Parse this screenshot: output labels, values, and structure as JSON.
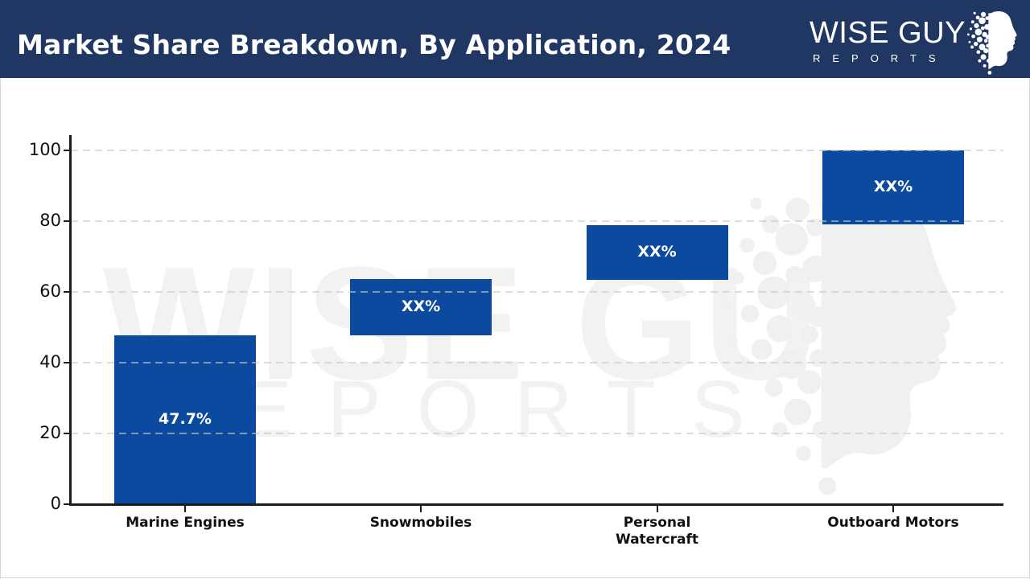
{
  "colors": {
    "header_bg": "#203763",
    "bar": "#0b4a9e",
    "watermark": "#f2f2f2",
    "grid": "#c8c8c8",
    "axis": "#1c1c1c",
    "bar_label": "#ffffff"
  },
  "header": {
    "title": "Market Share Breakdown, By Application, 2024",
    "brand": {
      "name": "WISE GUY",
      "sub": "REPORTS"
    }
  },
  "watermark": {
    "line1": "WISE GUY",
    "line2": "REPORTS"
  },
  "chart_data": {
    "type": "bar",
    "subtype": "waterfall",
    "title": "Market Share Breakdown, By Application, 2024",
    "categories": [
      "Marine Engines",
      "Snowmobiles",
      "Personal Watercraft",
      "Outboard Motors"
    ],
    "category_lines": [
      [
        "Marine Engines"
      ],
      [
        "Snowmobiles"
      ],
      [
        "Personal",
        "Watercraft"
      ],
      [
        "Outboard Motors"
      ]
    ],
    "bars": [
      {
        "category": "Marine Engines",
        "start": 0,
        "end": 47.7,
        "label": "47.7%"
      },
      {
        "category": "Snowmobiles",
        "start": 47.7,
        "end": 63.6,
        "label": "XX%"
      },
      {
        "category": "Personal Watercraft",
        "start": 63.3,
        "end": 78.9,
        "label": "XX%"
      },
      {
        "category": "Outboard Motors",
        "start": 79.2,
        "end": 100,
        "label": "XX%"
      }
    ],
    "y_ticks": [
      0,
      20,
      40,
      60,
      80,
      100
    ],
    "ylim": [
      0,
      104
    ],
    "xlabel": "",
    "ylabel": "",
    "grid": "horizontal-dashed",
    "legend": "none",
    "bar_label_color": "#ffffff"
  }
}
